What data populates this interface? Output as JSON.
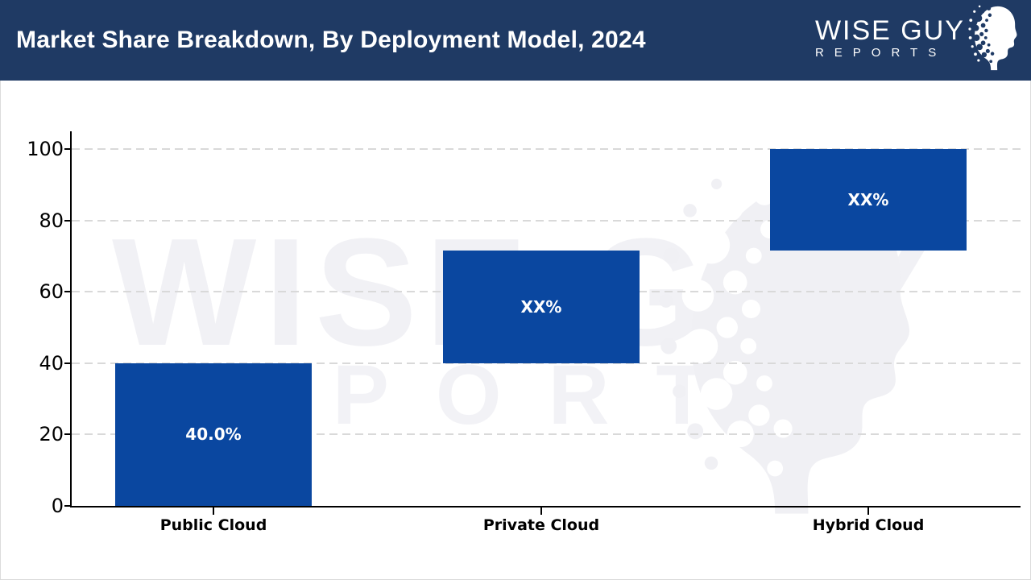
{
  "header": {
    "title": "Market Share Breakdown, By Deployment Model, 2024",
    "logo": {
      "line1": "WISE GUY",
      "line2": "REPORTS"
    }
  },
  "watermark": {
    "line1": "WISE GUY",
    "line2": "REPORTS"
  },
  "colors": {
    "header_bg": "#1F3A64",
    "bar": "#0A47A0",
    "grid": "#D9D9D9",
    "axis": "#000000",
    "bar_label": "#FFFFFF",
    "watermark": "#F1F1F5"
  },
  "chart_data": {
    "type": "bar",
    "subtype": "waterfall",
    "title": "Market Share Breakdown, By Deployment Model, 2024",
    "categories": [
      "Public Cloud",
      "Private Cloud",
      "Hybrid Cloud"
    ],
    "bars": [
      {
        "category": "Public Cloud",
        "start": 0,
        "end": 40,
        "label": "40.0%"
      },
      {
        "category": "Private Cloud",
        "start": 40,
        "end": 71.5,
        "label": "XX%"
      },
      {
        "category": "Hybrid Cloud",
        "start": 71.5,
        "end": 100,
        "label": "XX%"
      }
    ],
    "yticks": [
      0,
      20,
      40,
      60,
      80,
      100
    ],
    "ylim": [
      0,
      105
    ],
    "xlabel": "",
    "ylabel": "",
    "grid": "horizontal-dashed",
    "legend": "none"
  }
}
